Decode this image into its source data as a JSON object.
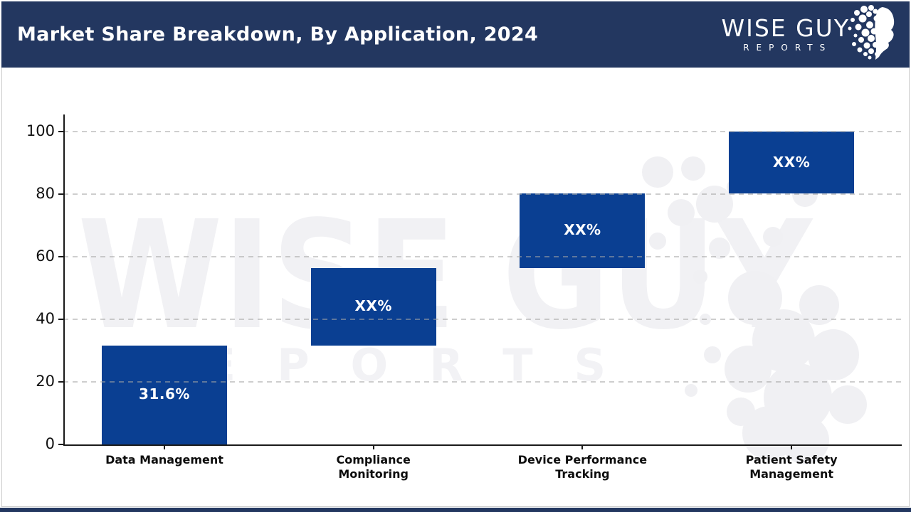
{
  "header": {
    "title": "Market Share Breakdown, By Application, 2024",
    "logo": {
      "name": "WISE GUY",
      "sub": "REPORTS"
    }
  },
  "watermark": {
    "name": "WISE GUY",
    "sub": "REPORTS"
  },
  "colors": {
    "header_bg": "#233760",
    "bar": "#0a3f92",
    "bar_label": "#ffffff",
    "grid": "#d9d9d9",
    "axis": "#1a1a1a",
    "watermark": "#f1f1f4"
  },
  "chart_data": {
    "type": "bar",
    "subtype": "waterfall",
    "title": "Market Share Breakdown, By Application, 2024",
    "categories": [
      "Data Management",
      "Compliance\nMonitoring",
      "Device Performance\nTracking",
      "Patient Safety\nManagement"
    ],
    "segments": [
      {
        "category": "Data Management",
        "start": 0,
        "end": 31.6,
        "label": "31.6%"
      },
      {
        "category": "Compliance Monitoring",
        "start": 31.6,
        "end": 56.4,
        "label": "XX%"
      },
      {
        "category": "Device Performance Tracking",
        "start": 56.4,
        "end": 80.2,
        "label": "XX%"
      },
      {
        "category": "Patient Safety Management",
        "start": 80.2,
        "end": 100,
        "label": "XX%"
      }
    ],
    "ylim": [
      0,
      100
    ],
    "yticks": [
      0,
      20,
      40,
      60,
      80,
      100
    ],
    "grid": "horizontal-dashed",
    "legend": "none"
  }
}
